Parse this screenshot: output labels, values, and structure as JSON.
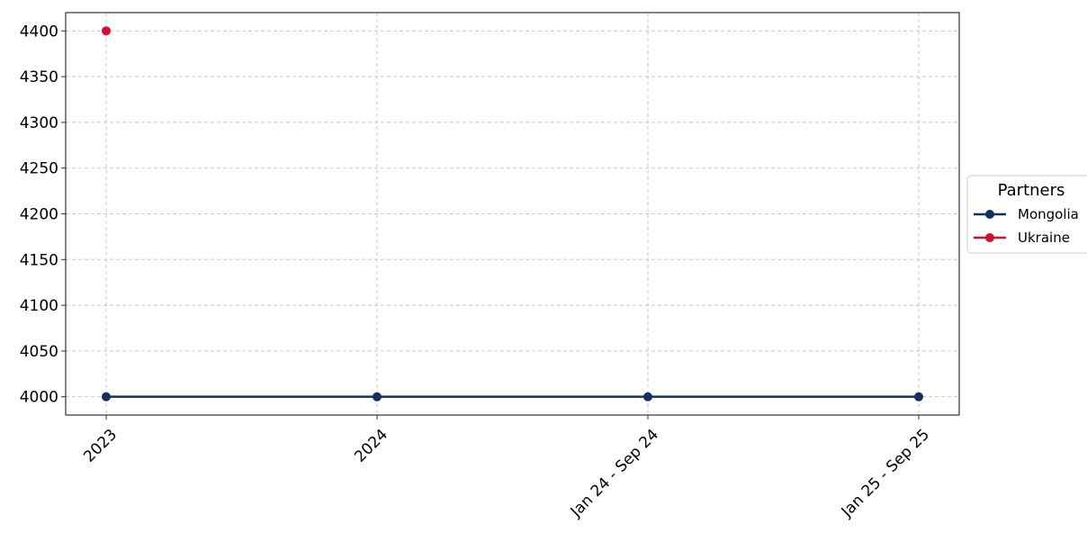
{
  "chart_data": {
    "type": "line",
    "title": "",
    "title_color": "#1f6fd6",
    "xlabel": "",
    "ylabel": "",
    "categories": [
      "2023",
      "2024",
      "Jan 24 - Sep 24",
      "Jan 25 - Sep 25"
    ],
    "ylim": [
      3980,
      4420
    ],
    "yticks": [
      4000,
      4050,
      4100,
      4150,
      4200,
      4250,
      4300,
      4350,
      4400
    ],
    "grid": true,
    "legend": {
      "title": "Partners",
      "placement": "right"
    },
    "series": [
      {
        "name": "Mongolia",
        "color": "#14305c",
        "values": [
          4000,
          4000,
          4000,
          4000
        ]
      },
      {
        "name": "Ukraine",
        "color": "#d0102e",
        "values": [
          4400,
          null,
          null,
          null
        ]
      }
    ]
  }
}
